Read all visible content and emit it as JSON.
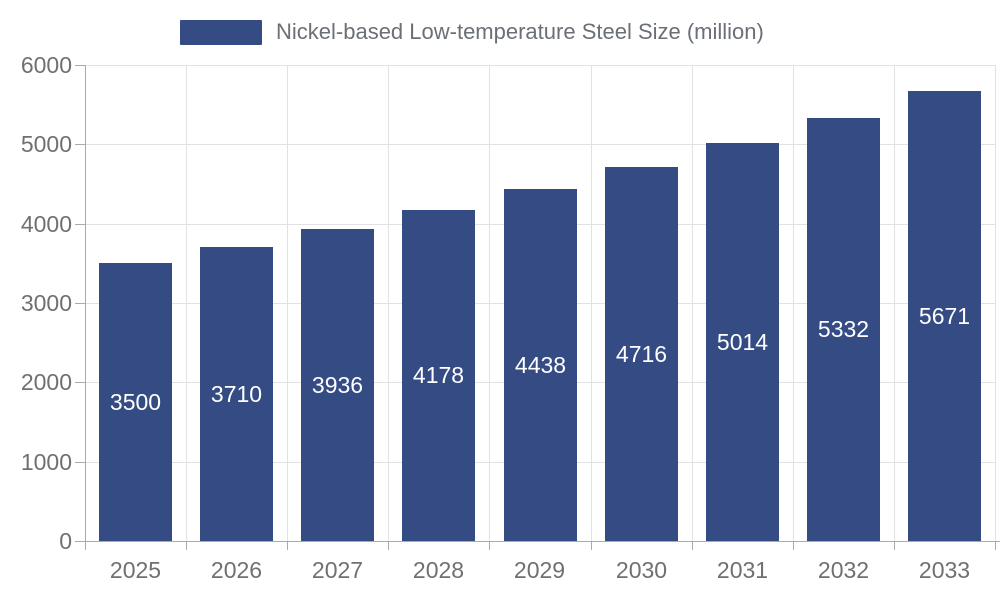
{
  "legend": {
    "label": "Nickel-based Low-temperature Steel Size (million)"
  },
  "colors": {
    "bar": "#344b84",
    "grid": "#e2e2e2",
    "axis": "#aaaaaa",
    "tick_text": "#707070",
    "legend_text": "#6b6f76",
    "value_label": "#ffffff",
    "background": "#ffffff"
  },
  "chart_data": {
    "type": "bar",
    "title": "Nickel-based Low-temperature Steel Size (million)",
    "categories": [
      "2025",
      "2026",
      "2027",
      "2028",
      "2029",
      "2030",
      "2031",
      "2032",
      "2033"
    ],
    "values": [
      3500,
      3710,
      3936,
      4178,
      4438,
      4716,
      5014,
      5332,
      5671
    ],
    "xlabel": "",
    "ylabel": "",
    "ylim": [
      0,
      6000
    ],
    "yticks": [
      0,
      1000,
      2000,
      3000,
      4000,
      5000,
      6000
    ],
    "grid": true,
    "legend_position": "top",
    "value_label_position": "inside-center",
    "bar_color": "#344b84"
  }
}
